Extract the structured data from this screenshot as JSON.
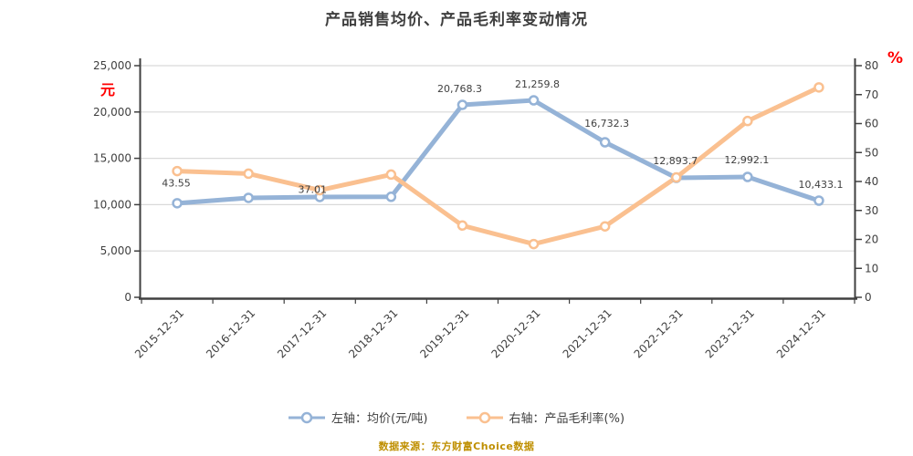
{
  "chart": {
    "title": "产品销售均价、产品毛利率变动情况",
    "source": "数据来源：东方财富Choice数据",
    "colors": {
      "series_price": "#95b3d7",
      "series_margin": "#fac090",
      "axis_line": "#404040",
      "gridline": "#d9d9d9",
      "text": "#3f3f3f",
      "unit_red": "#ff0000",
      "watermark_gold": "#bf8f00"
    },
    "left_axis": {
      "unit": "元",
      "tick_labels": [
        "0",
        "5,000",
        "10,000",
        "15,000",
        "20,000",
        "25,000"
      ],
      "tick_values": [
        0,
        5000,
        10000,
        15000,
        20000,
        25000
      ]
    },
    "right_axis": {
      "unit": "%",
      "tick_labels": [
        "0",
        "10",
        "20",
        "30",
        "40",
        "50",
        "60",
        "70",
        "80"
      ],
      "tick_values": [
        0,
        10,
        20,
        30,
        40,
        50,
        60,
        70,
        80
      ]
    },
    "legend": [
      {
        "label": "左轴：均价(元/吨)",
        "color": "#95b3d7"
      },
      {
        "label": "右轴：产品毛利率(%)",
        "color": "#fac090"
      }
    ]
  },
  "chart_data": {
    "type": "line",
    "title": "产品销售均价、产品毛利率变动情况",
    "categories": [
      "2015-12-31",
      "2016-12-31",
      "2017-12-31",
      "2018-12-31",
      "2019-12-31",
      "2020-12-31",
      "2021-12-31",
      "2022-12-31",
      "2023-12-31",
      "2024-12-31"
    ],
    "left_ylim": [
      0,
      25000
    ],
    "right_ylim": [
      0,
      80
    ],
    "grid": true,
    "legend_position": "bottom",
    "series": [
      {
        "name": "均价(元/吨)",
        "axis": "left",
        "color": "#95b3d7",
        "values": [
          10152,
          10731,
          10829,
          10851,
          20768,
          21260,
          16732,
          12894,
          12992,
          10433
        ],
        "point_labels": [
          null,
          null,
          null,
          null,
          {
            "text": "20,768.3",
            "dx": -3,
            "dy": -14
          },
          {
            "text": "21,259.8",
            "dx": 4,
            "dy": -14
          },
          {
            "text": "16,732.3",
            "dx": 2,
            "dy": -17
          },
          {
            "text": "12,893.7",
            "dx": -1,
            "dy": -15
          },
          {
            "text": "12,992.1",
            "dx": -1,
            "dy": -15
          },
          {
            "text": "10,433.1",
            "dx": 2,
            "dy": -14
          }
        ]
      },
      {
        "name": "产品毛利率(%)",
        "axis": "right",
        "color": "#fac090",
        "values": [
          43.6,
          42.7,
          37.0,
          42.4,
          24.8,
          18.4,
          24.5,
          41.4,
          60.9,
          72.5
        ],
        "point_labels": [
          {
            "text": "43.55",
            "dx": -1,
            "dy": 17
          },
          null,
          {
            "text": "37.01",
            "dx": -8,
            "dy": 3
          },
          null,
          null,
          null,
          null,
          null,
          null,
          null
        ]
      }
    ]
  }
}
